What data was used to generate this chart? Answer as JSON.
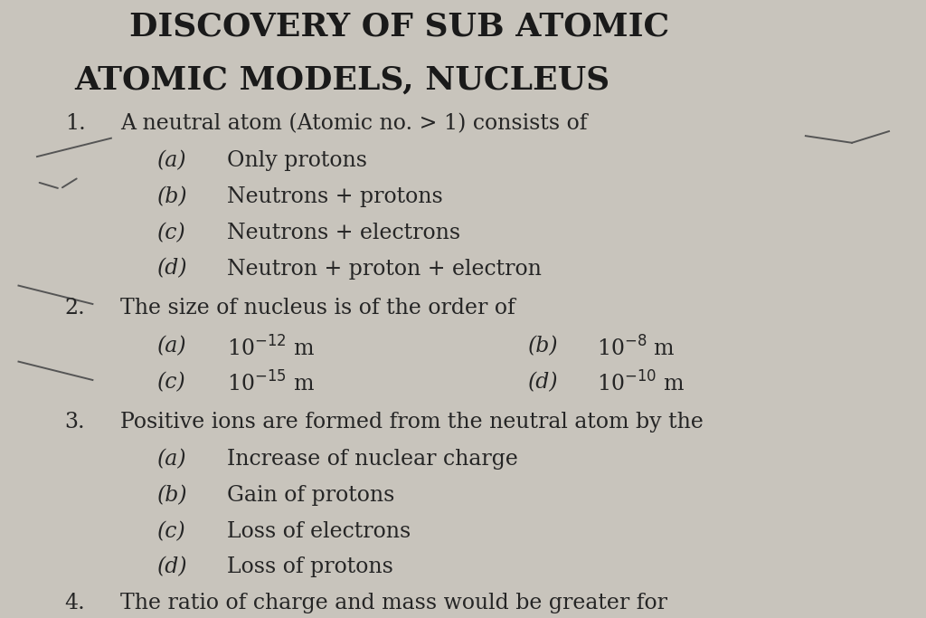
{
  "background_color": "#c8c4bc",
  "page_color": "#dedad4",
  "title_line1": "DISCOVERY OF SUB ATOMIC",
  "title_line2": "ATOMIC MODELS, NUCLEUS",
  "title_fontsize": 26,
  "body_fontsize": 17,
  "q_fontsize": 17,
  "questions": [
    {
      "number": "1.",
      "text": "A neutral atom (Atomic no. > 1) consists of",
      "options": [
        {
          "label": "(a)",
          "text": "Only protons"
        },
        {
          "label": "(b)",
          "text": "Neutrons + protons"
        },
        {
          "label": "(c)",
          "text": "Neutrons + electrons"
        },
        {
          "label": "(d)",
          "text": "Neutron + proton + electron"
        }
      ],
      "two_col": false
    },
    {
      "number": "2.",
      "text": "The size of nucleus is of the order of",
      "options_2col": [
        [
          {
            "label": "(a)",
            "text": "10$^{-12}$ m"
          },
          {
            "label": "(b)",
            "text": "10$^{-8}$ m"
          }
        ],
        [
          {
            "label": "(c)",
            "text": "10$^{-15}$ m"
          },
          {
            "label": "(d)",
            "text": "10$^{-10}$ m"
          }
        ]
      ],
      "two_col": true
    },
    {
      "number": "3.",
      "text": "Positive ions are formed from the neutral atom by the",
      "options": [
        {
          "label": "(a)",
          "text": "Increase of nuclear charge"
        },
        {
          "label": "(b)",
          "text": "Gain of protons"
        },
        {
          "label": "(c)",
          "text": "Loss of electrons"
        },
        {
          "label": "(d)",
          "text": "Loss of protons"
        }
      ],
      "two_col": false
    }
  ],
  "last_line": "The ratio of charge and mass would be greater for",
  "text_color": "#252525",
  "title_color": "#1a1a1a",
  "mark_color": "#555555"
}
